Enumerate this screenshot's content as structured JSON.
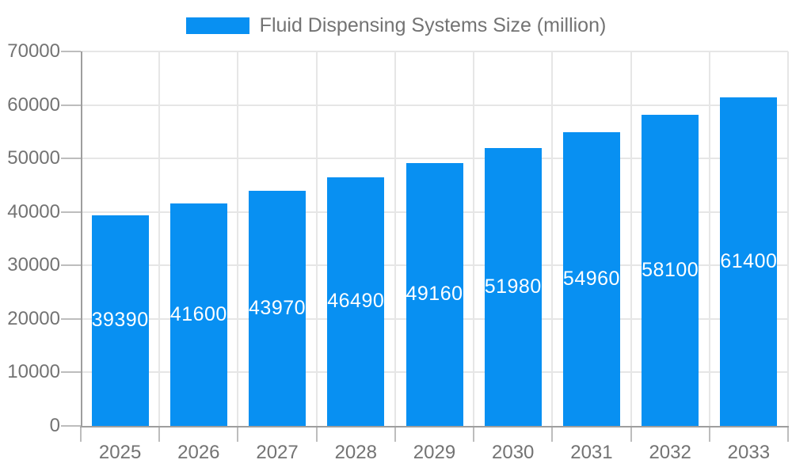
{
  "chart_data": {
    "type": "bar",
    "title": "",
    "legend_label": "Fluid Dispensing Systems Size (million)",
    "legend_position": "top-center",
    "categories": [
      "2025",
      "2026",
      "2027",
      "2028",
      "2029",
      "2030",
      "2031",
      "2032",
      "2033"
    ],
    "values": [
      39390,
      41600,
      43970,
      46490,
      49160,
      51980,
      54960,
      58100,
      61400
    ],
    "value_labels": [
      "39390",
      "41600",
      "43970",
      "46490",
      "49160",
      "51980",
      "54960",
      "58100",
      "61400"
    ],
    "xlabel": "",
    "ylabel": "",
    "y_axis": {
      "min": 0,
      "max": 70000,
      "step": 10000,
      "tick_labels": [
        "0",
        "10000",
        "20000",
        "30000",
        "40000",
        "50000",
        "60000",
        "70000"
      ]
    },
    "grid": true,
    "colors": {
      "bar": "#0890f2",
      "grid": "#e6e6e6",
      "axis": "#9e9e9e",
      "tick_mark": "#bdbdbd",
      "tick_text": "#737373",
      "legend_text": "#737373",
      "value_text": "#ffffff",
      "background": "#ffffff"
    }
  }
}
